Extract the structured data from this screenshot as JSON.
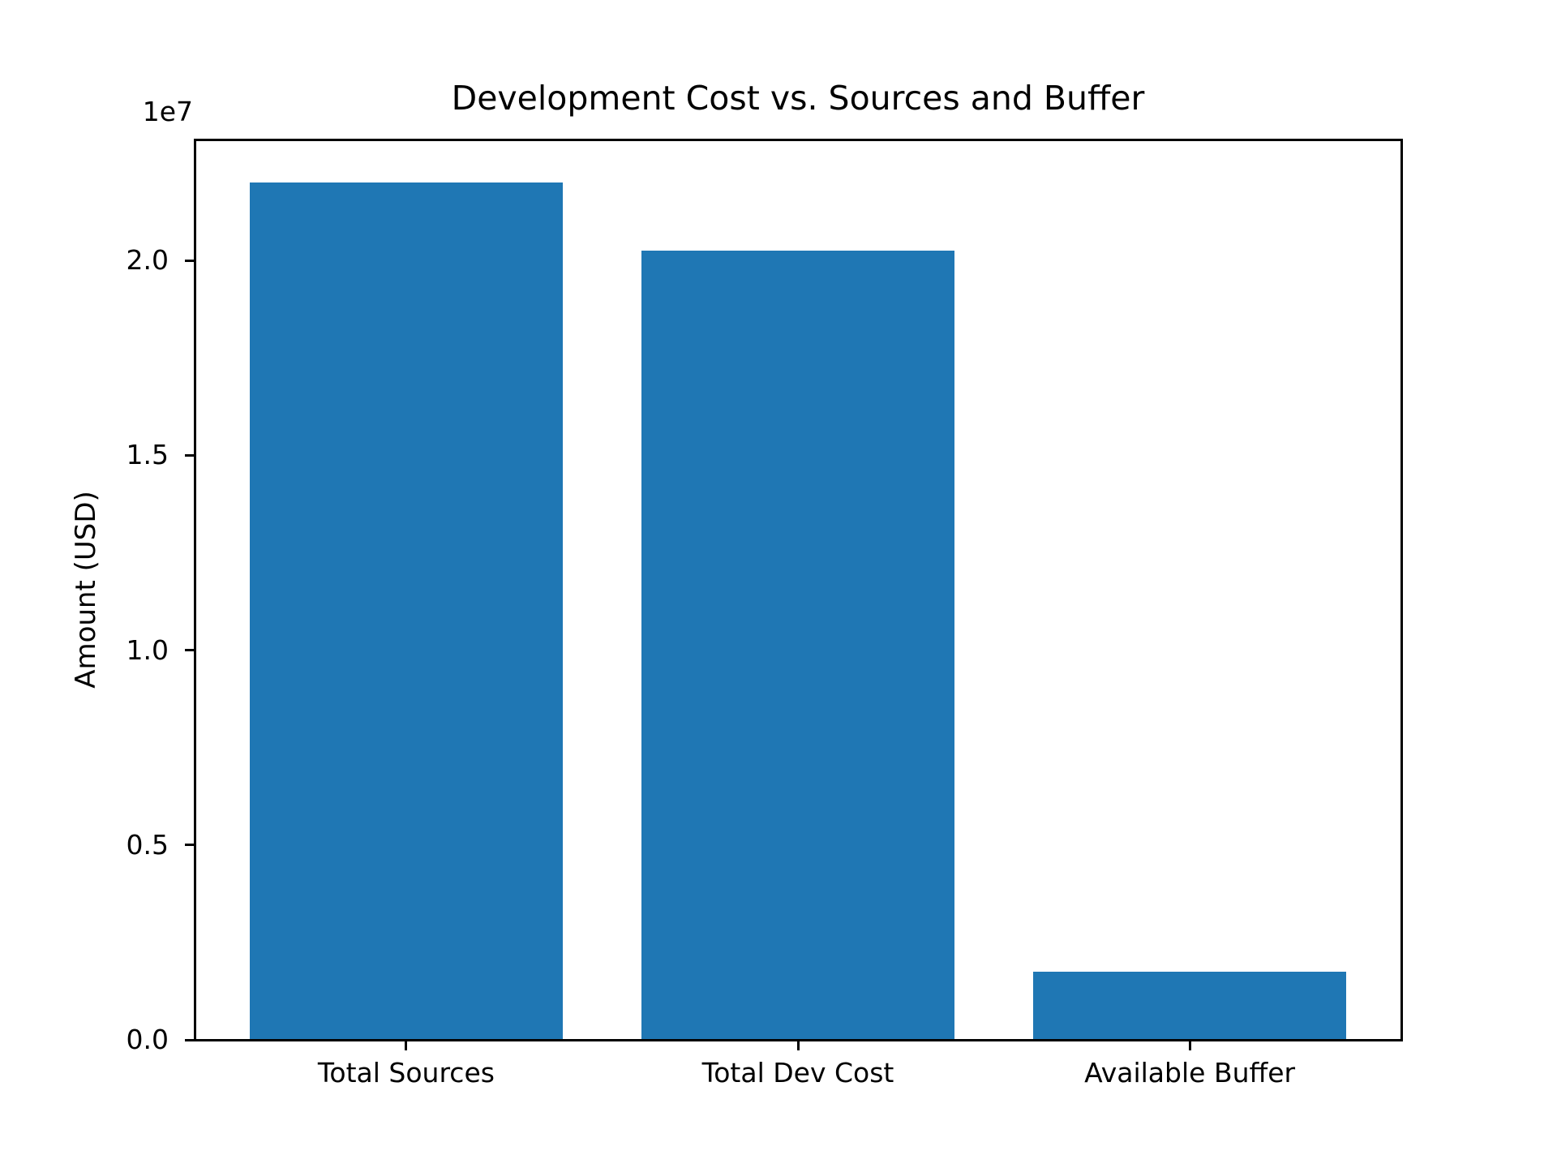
{
  "figure": {
    "background": "#ffffff"
  },
  "chart_data": {
    "type": "bar",
    "title": "Development Cost vs. Sources and Buffer",
    "xlabel": "",
    "ylabel": "Amount (USD)",
    "offset_text": "1e7",
    "categories": [
      "Total Sources",
      "Total Dev Cost",
      "Available Buffer"
    ],
    "values": [
      22000000,
      20250000,
      1750000
    ],
    "bar_color": "#1f77b4",
    "ylim": [
      0,
      23100000
    ],
    "yticks": [
      0,
      5000000,
      10000000,
      15000000,
      20000000
    ],
    "ytick_labels": [
      "0.0",
      "0.5",
      "1.0",
      "1.5",
      "2.0"
    ],
    "grid": false,
    "legend": null
  }
}
